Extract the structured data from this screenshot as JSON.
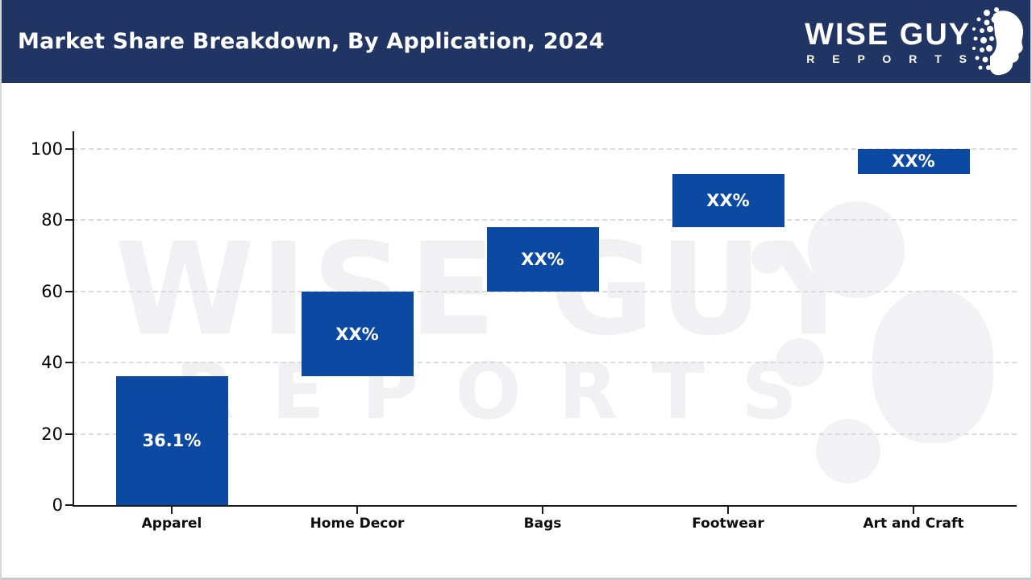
{
  "header": {
    "title": "Market Share Breakdown, By Application, 2024",
    "bg_color": "#213564",
    "logo": {
      "line1": "WISE GUY",
      "line2": "R E P O R T S"
    }
  },
  "watermark": {
    "line1": "WISE GUY",
    "line2": "REPORTS"
  },
  "chart_data": {
    "type": "bar",
    "subtype": "waterfall",
    "title": "Market Share Breakdown, By Application, 2024",
    "xlabel": "",
    "ylabel": "",
    "ylim": [
      0,
      100
    ],
    "yticks": [
      0,
      20,
      40,
      60,
      80,
      100
    ],
    "grid": "horizontal-dashed",
    "legend": "none",
    "bar_color": "#0c49a3",
    "bar_label_color": "#ffffff",
    "categories": [
      "Apparel",
      "Home Decor",
      "Bags",
      "Footwear",
      "Art and Craft"
    ],
    "segments": [
      {
        "category": "Apparel",
        "start": 0,
        "end": 36.1,
        "label": "36.1%"
      },
      {
        "category": "Home Decor",
        "start": 36.1,
        "end": 60,
        "label": "XX%"
      },
      {
        "category": "Bags",
        "start": 60,
        "end": 78,
        "label": "XX%"
      },
      {
        "category": "Footwear",
        "start": 78,
        "end": 93,
        "label": "XX%"
      },
      {
        "category": "Art and Craft",
        "start": 93,
        "end": 100,
        "label": "XX%"
      }
    ]
  }
}
